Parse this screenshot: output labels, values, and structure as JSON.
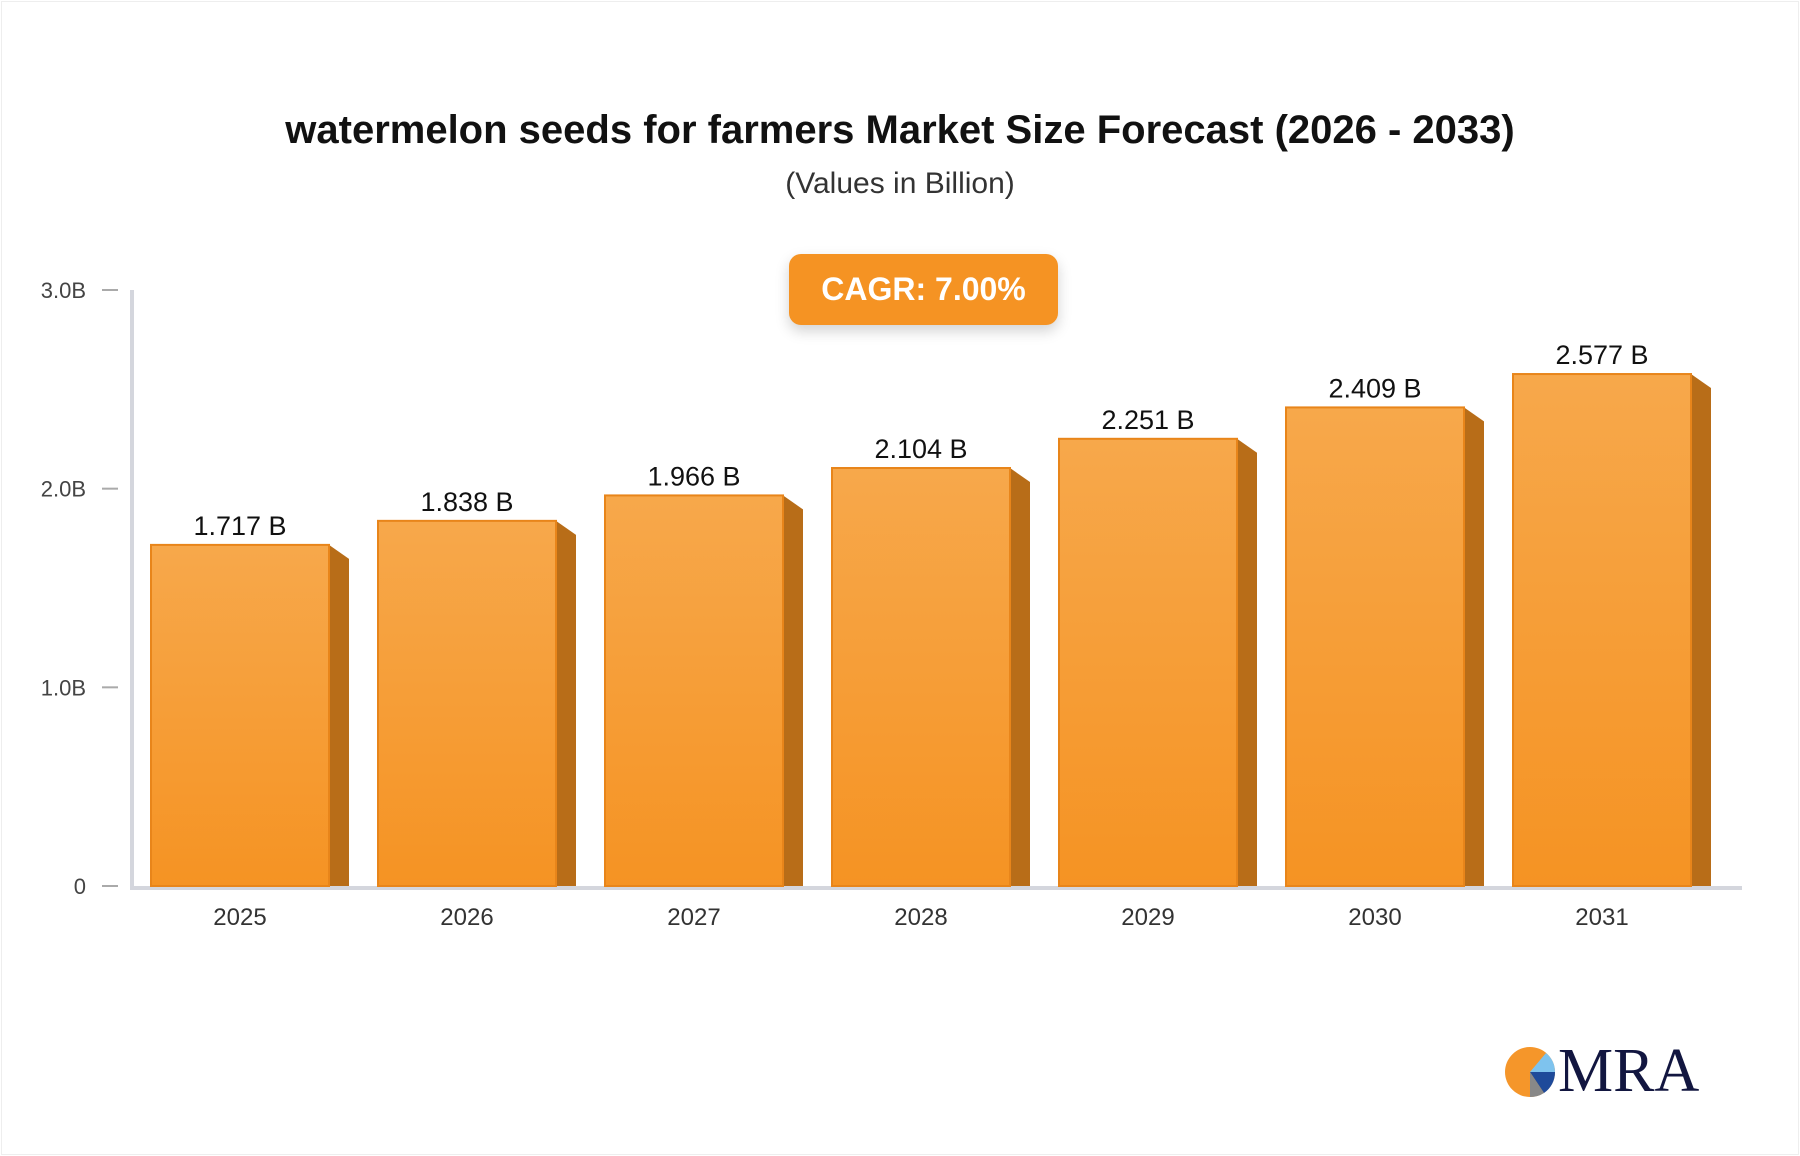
{
  "chart_data": {
    "type": "bar",
    "title": "watermelon seeds for farmers Market Size Forecast (2026 - 2033)",
    "subtitle": "(Values in Billion)",
    "annotation": "CAGR: 7.00%",
    "categories": [
      "2025",
      "2026",
      "2027",
      "2028",
      "2029",
      "2030",
      "2031"
    ],
    "values": [
      1.717,
      1.838,
      1.966,
      2.104,
      2.251,
      2.409,
      2.577
    ],
    "data_labels": [
      "1.717 B",
      "1.838 B",
      "1.966 B",
      "2.104 B",
      "2.251 B",
      "2.409 B",
      "2.577 B"
    ],
    "yticks": [
      {
        "v": 0,
        "label": "0"
      },
      {
        "v": 1,
        "label": "1.0B"
      },
      {
        "v": 2,
        "label": "2.0B"
      },
      {
        "v": 3,
        "label": "3.0B"
      }
    ],
    "ylim": [
      0,
      3
    ],
    "grid": false,
    "bar_color": "#f59323",
    "bar_side_color": "#b86d18"
  },
  "logo": {
    "text": "MRA"
  }
}
